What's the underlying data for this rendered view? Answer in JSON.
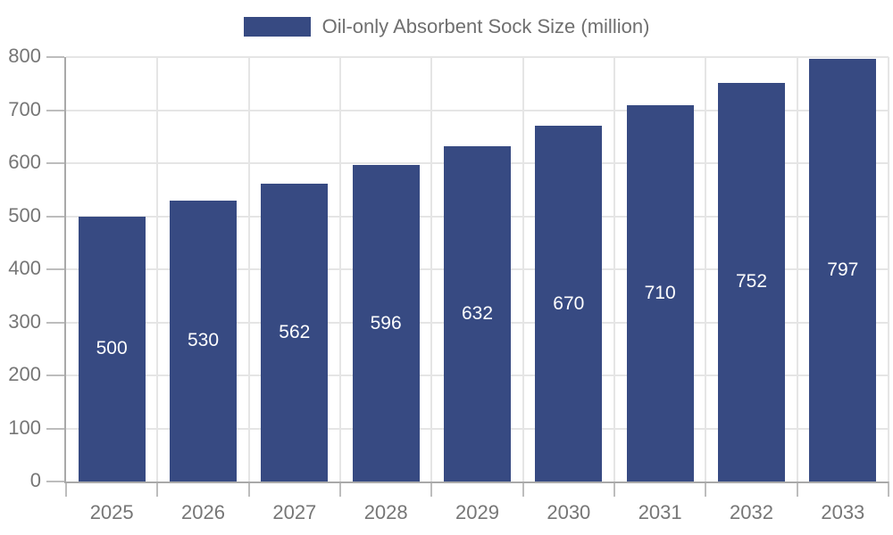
{
  "legend": {
    "label": "Oil-only Absorbent Sock Size (million)"
  },
  "chart_data": {
    "type": "bar",
    "title": "",
    "legend_label": "Oil-only Absorbent Sock Size (million)",
    "legend_position": "top-center",
    "categories": [
      "2025",
      "2026",
      "2027",
      "2028",
      "2029",
      "2030",
      "2031",
      "2032",
      "2033"
    ],
    "values": [
      500,
      530,
      562,
      596,
      632,
      670,
      710,
      752,
      797
    ],
    "xlabel": "",
    "ylabel": "",
    "ylim": [
      0,
      800
    ],
    "ytick_step": 100,
    "yticks": [
      0,
      100,
      200,
      300,
      400,
      500,
      600,
      700,
      800
    ],
    "grid": true,
    "value_labels": "inside-center",
    "colors": {
      "bar": "#374a82",
      "value_label": "#ffffff",
      "axis_label": "#767676",
      "legend_text": "#6f6f6f",
      "gridline": "#e5e5e5",
      "axis_line": "#a9a9a9",
      "tick": "#bdbdbd",
      "background": "#ffffff"
    }
  }
}
